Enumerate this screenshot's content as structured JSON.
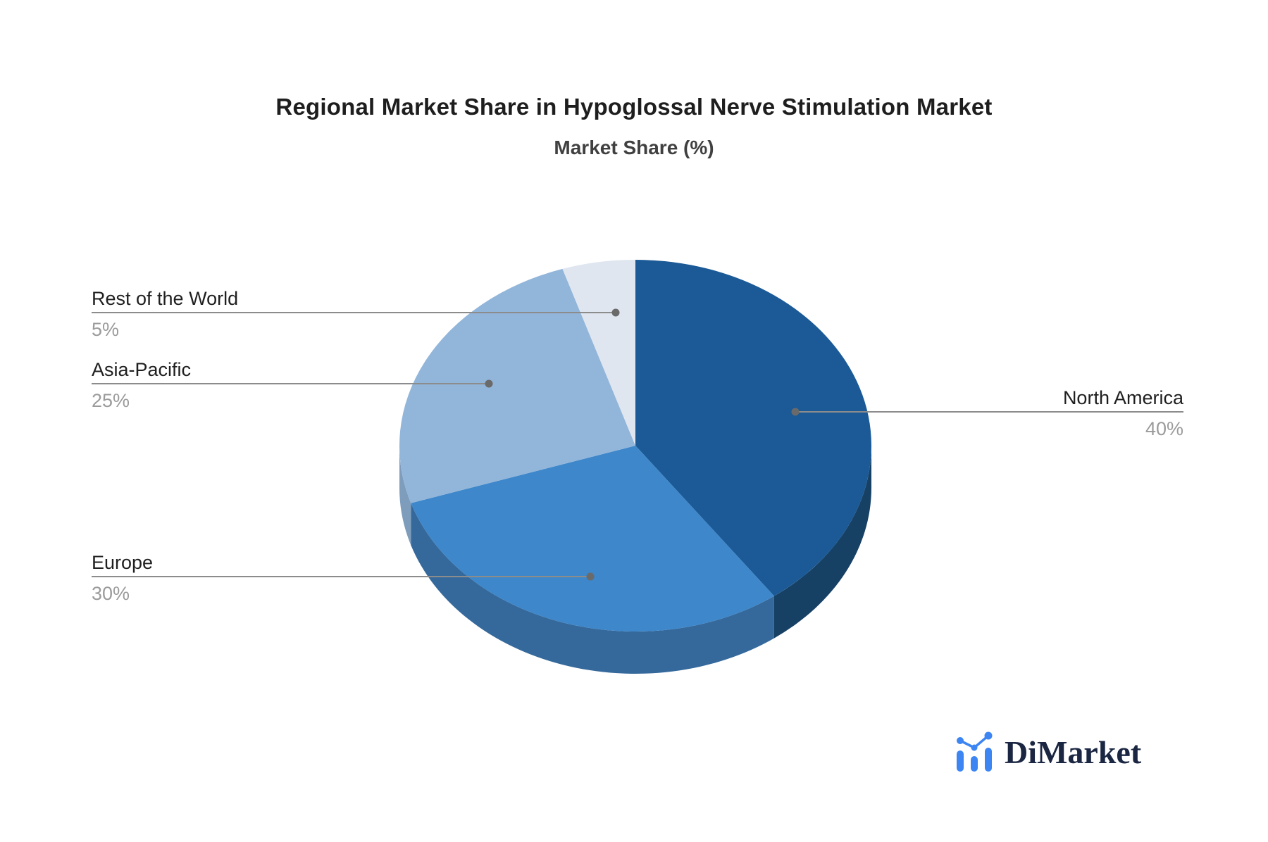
{
  "header": {
    "title": "Regional Market Share in Hypoglossal Nerve Stimulation Market",
    "subtitle": "Market Share (%)"
  },
  "chart_data": {
    "type": "pie",
    "title": "Regional Market Share in Hypoglossal Nerve Stimulation Market",
    "value_label": "Market Share (%)",
    "direction": "clockwise",
    "start_angle_deg": 0,
    "style": "3d-depth",
    "slices": [
      {
        "label": "North America",
        "value": 40,
        "display": "40%",
        "color": "#1B5A96",
        "side_color": "#164064"
      },
      {
        "label": "Europe",
        "value": 30,
        "display": "30%",
        "color": "#3D87CA",
        "side_color": "#35699C"
      },
      {
        "label": "Asia-Pacific",
        "value": 25,
        "display": "25%",
        "color": "#92B5DA",
        "side_color": "#7E9CBB"
      },
      {
        "label": "Rest of the World",
        "value": 5,
        "display": "5%",
        "color": "#DFE6EF",
        "side_color": "#C7D2E0"
      }
    ]
  },
  "callouts": {
    "rest_of_world": {
      "name": "Rest of the World",
      "pct": "5%"
    },
    "asia_pacific": {
      "name": "Asia-Pacific",
      "pct": "25%"
    },
    "europe": {
      "name": "Europe",
      "pct": "30%"
    },
    "north_america": {
      "name": "North America",
      "pct": "40%"
    }
  },
  "colors": {
    "leader_line": "#8c8c8c",
    "leader_dot": "#6a6a6a",
    "label_text": "#1f1f1f",
    "pct_text": "#9b9b9b"
  },
  "logo": {
    "text": "DiMarket",
    "icon": "bar-line-chart-icon",
    "icon_color": "#3C85F2",
    "text_color": "#1A2642"
  }
}
